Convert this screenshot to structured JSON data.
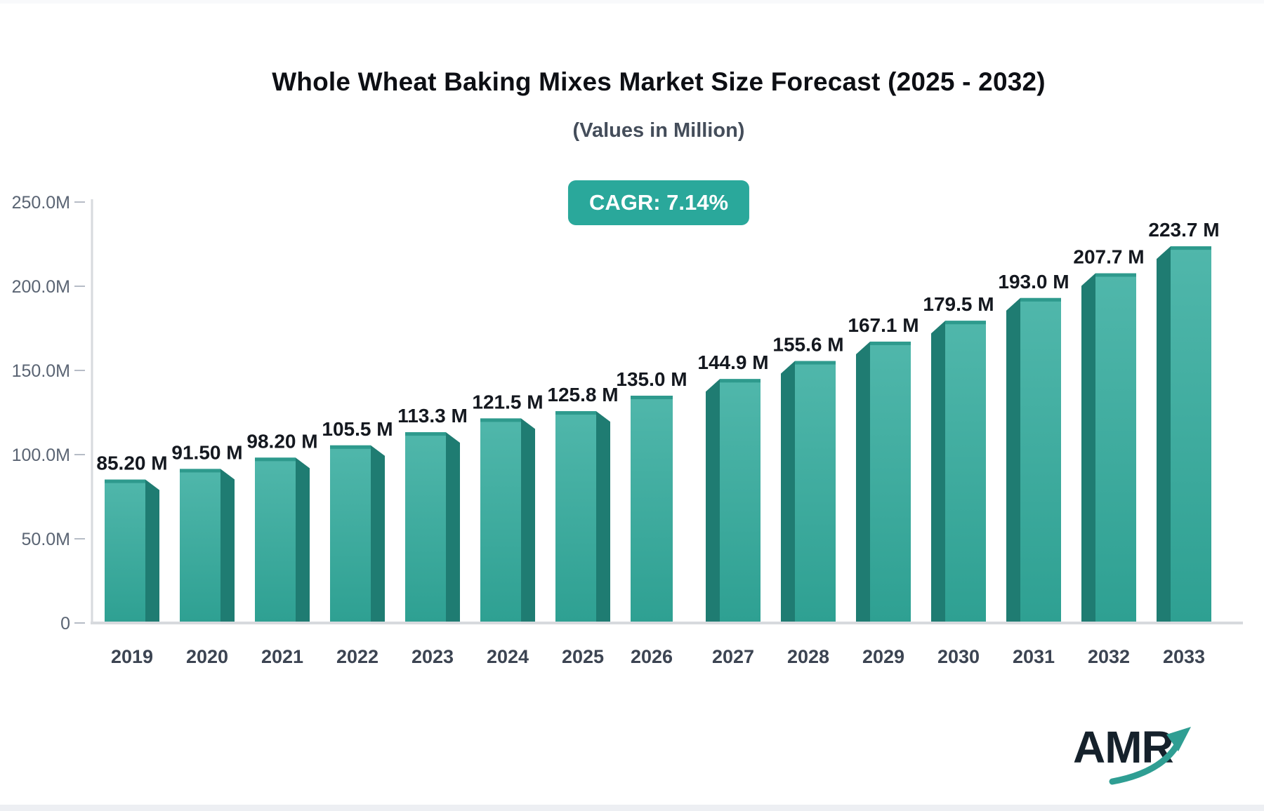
{
  "chart_data": {
    "type": "bar",
    "title": "Whole Wheat Baking Mixes Market Size Forecast (2025 - 2032)",
    "subtitle": "(Values in Million)",
    "cagr_badge": "CAGR: 7.14%",
    "categories": [
      "2019",
      "2020",
      "2021",
      "2022",
      "2023",
      "2024",
      "2025",
      "2026",
      "2027",
      "2028",
      "2029",
      "2030",
      "2031",
      "2032",
      "2033"
    ],
    "values": [
      85.2,
      91.5,
      98.2,
      105.5,
      113.3,
      121.5,
      125.8,
      135.0,
      144.9,
      155.6,
      167.1,
      179.5,
      193.0,
      207.7,
      223.7
    ],
    "value_labels": [
      "85.20 M",
      "91.50 M",
      "98.20 M",
      "105.5 M",
      "113.3 M",
      "121.5 M",
      "125.8 M",
      "135.0 M",
      "144.9 M",
      "155.6 M",
      "167.1 M",
      "179.5 M",
      "193.0 M",
      "207.7 M",
      "223.7 M"
    ],
    "y_ticks": [
      "250.0M",
      "200.0M",
      "150.0M",
      "100.0M",
      "50.0M",
      "0"
    ],
    "ylim": [
      0,
      250
    ],
    "xlabel": "",
    "ylabel": "",
    "grid": false,
    "legend": false,
    "colors": {
      "bar_front_top": "#50b7ab",
      "bar_front_bottom": "#2ea092",
      "bar_side": "#1f7c72",
      "bar_top_edge": "#2e9a8d",
      "axis_line": "#d7dade",
      "tick_mark": "#b6bcc6",
      "tick_label": "#5a6473",
      "year_label": "#3c4452",
      "value_label": "#14181f",
      "badge_bg": "#2aa89b",
      "badge_text": "#ffffff"
    }
  },
  "logo": {
    "text": "AMR",
    "text_color": "#15212b",
    "arrow_color": "#2f9e93"
  }
}
